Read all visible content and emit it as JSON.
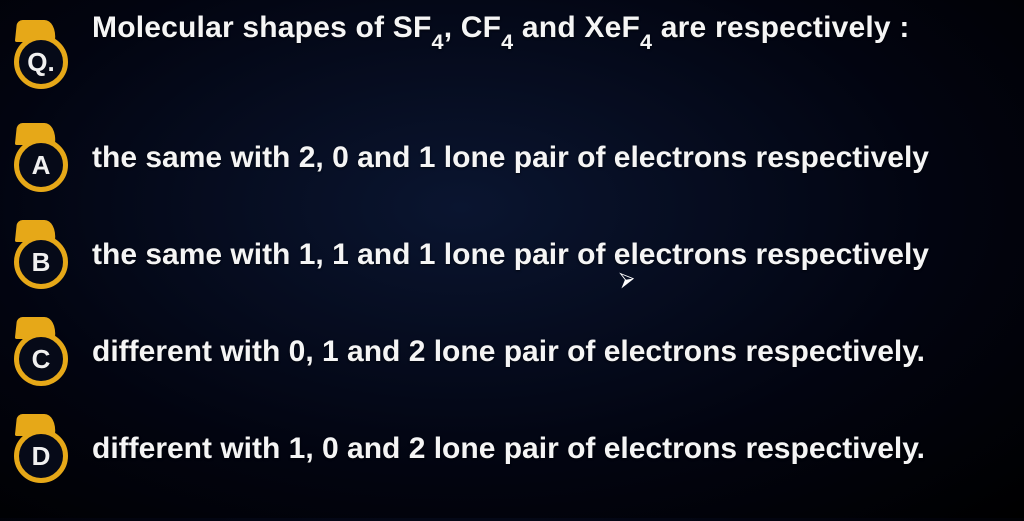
{
  "question": {
    "badge": "Q.",
    "text_before": "Molecular shapes of SF",
    "sub1": "4",
    "mid1": ", CF",
    "sub2": "4",
    "mid2": " and XeF",
    "sub3": "4",
    "text_after": " are respectively :"
  },
  "options": [
    {
      "badge": "A",
      "text": "the same with 2, 0 and 1 lone pair of electrons respectively"
    },
    {
      "badge": "B",
      "text": "the same with 1, 1 and 1 lone pair of electrons respectively"
    },
    {
      "badge": "C",
      "text": "different with 0, 1 and 2 lone pair of electrons respectively."
    },
    {
      "badge": "D",
      "text": "different with 1, 0 and 2 lone pair of electrons respectively."
    }
  ],
  "colors": {
    "accent": "#e6a818",
    "bg_dark": "#020410",
    "bg_mid": "#0a1530",
    "text": "#f5f5f5"
  }
}
